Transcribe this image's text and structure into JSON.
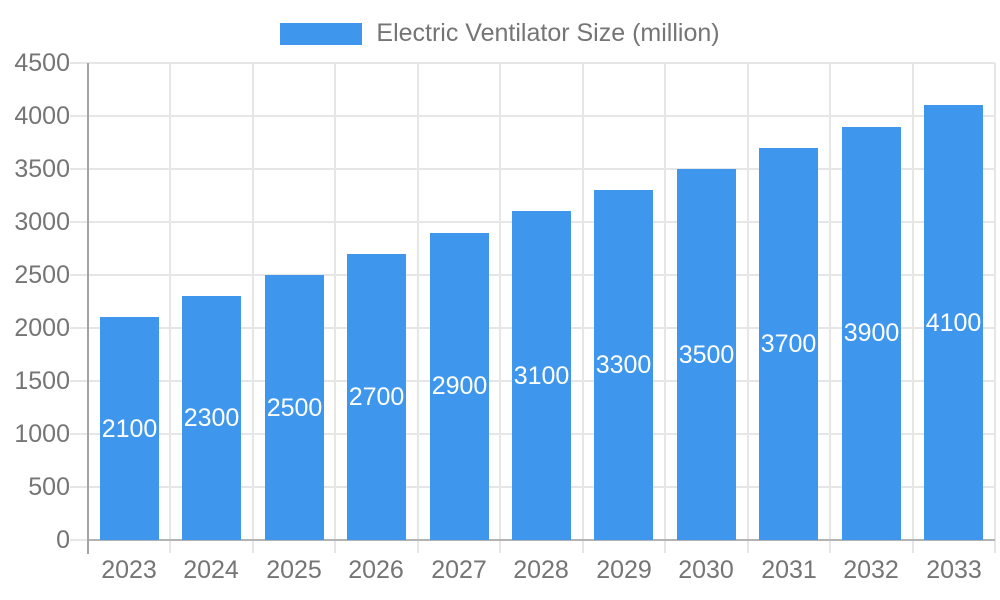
{
  "chart_data": {
    "type": "bar",
    "legend": "Electric Ventilator Size (million)",
    "legend_position": "top",
    "categories": [
      "2023",
      "2024",
      "2025",
      "2026",
      "2027",
      "2028",
      "2029",
      "2030",
      "2031",
      "2032",
      "2033"
    ],
    "series": [
      {
        "name": "Electric Ventilator Size (million)",
        "values": [
          2100,
          2300,
          2500,
          2700,
          2900,
          3100,
          3300,
          3500,
          3700,
          3900,
          4100
        ]
      }
    ],
    "ylim": [
      0,
      4500
    ],
    "yticks": [
      "0",
      "500",
      "1000",
      "1500",
      "2000",
      "2500",
      "3000",
      "3500",
      "4000",
      "4500"
    ],
    "grid": true,
    "value_label_position": "inside-center",
    "colors": {
      "bar": "#3e97ed",
      "value_label": "#ffffff",
      "axis_text": "#757575",
      "gridline": "#e6e6e6",
      "axis_line": "#a3a3a3",
      "baseline": "#b3b3b3",
      "background": "#ffffff"
    }
  }
}
